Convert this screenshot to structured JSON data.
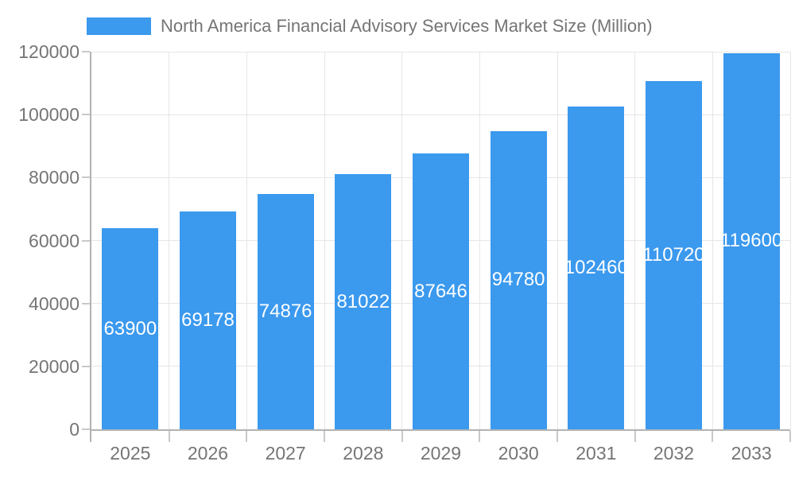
{
  "chart_data": {
    "type": "bar",
    "title": "North America Financial Advisory Services Market Size (Million)",
    "categories": [
      "2025",
      "2026",
      "2027",
      "2028",
      "2029",
      "2030",
      "2031",
      "2032",
      "2033"
    ],
    "values": [
      63900,
      69178,
      74876,
      81022,
      87646,
      94780,
      102460,
      110720,
      119600
    ],
    "series": [
      {
        "name": "North America Financial Advisory Services Market Size (Million)",
        "values": [
          63900,
          69178,
          74876,
          81022,
          87646,
          94780,
          102460,
          110720,
          119600
        ]
      }
    ],
    "xlabel": "",
    "ylabel": "",
    "ylim": [
      0,
      120000
    ],
    "yticks": [
      0,
      20000,
      40000,
      60000,
      80000,
      100000,
      120000
    ],
    "grid": true,
    "legend_position": "top-left",
    "value_labels": "inside-center-white",
    "colors": {
      "bar": "#3B99EE",
      "value_label": "#ffffff",
      "axis_text": "#757575",
      "axis_line": "#b3b3b3",
      "tick_line": "#c9c9c9",
      "grid_line": "#e6e6e6",
      "background": "#ffffff"
    }
  }
}
